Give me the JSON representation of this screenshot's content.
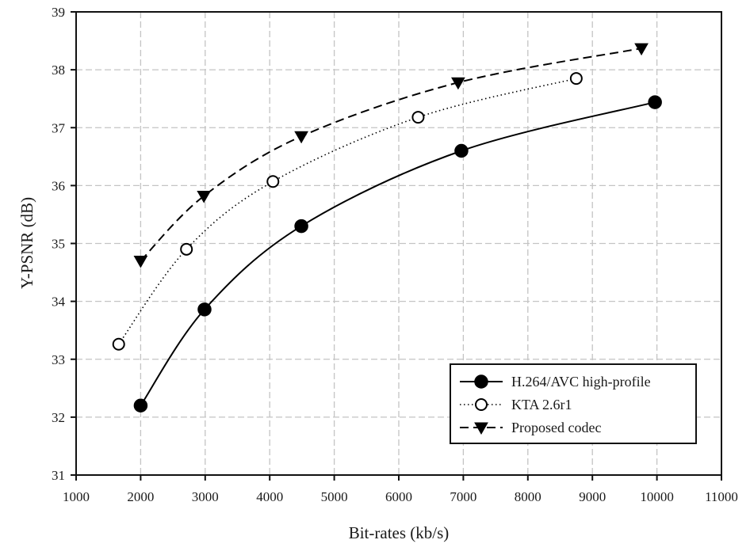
{
  "chart_data": {
    "type": "line",
    "title": "",
    "xlabel": "Bit-rates (kb/s)",
    "ylabel": "Y-PSNR (dB)",
    "xlim": [
      1000,
      11000
    ],
    "ylim": [
      31,
      39
    ],
    "x_ticks": [
      1000,
      2000,
      3000,
      4000,
      5000,
      6000,
      7000,
      8000,
      9000,
      10000,
      11000
    ],
    "y_ticks": [
      31,
      32,
      33,
      34,
      35,
      36,
      37,
      38,
      39
    ],
    "grid": true,
    "grid_style": "dashed",
    "legend_position": "lower right",
    "series": [
      {
        "name": "H.264/AVC high-profile",
        "line_style": "solid",
        "marker": "filled-circle",
        "color": "#000000",
        "x": [
          2000,
          2990,
          4490,
          6970,
          9970
        ],
        "y": [
          32.2,
          33.86,
          35.3,
          36.6,
          37.44
        ]
      },
      {
        "name": "KTA 2.6r1",
        "line_style": "dotted",
        "marker": "open-circle",
        "color": "#000000",
        "x": [
          1660,
          2710,
          4050,
          6300,
          8750
        ],
        "y": [
          33.26,
          34.9,
          36.07,
          37.18,
          37.85
        ]
      },
      {
        "name": "Proposed codec",
        "line_style": "dashed",
        "marker": "filled-triangle-down",
        "color": "#000000",
        "x": [
          2000,
          2980,
          4490,
          6920,
          9760
        ],
        "y": [
          34.7,
          35.82,
          36.85,
          37.78,
          38.37
        ]
      }
    ]
  }
}
